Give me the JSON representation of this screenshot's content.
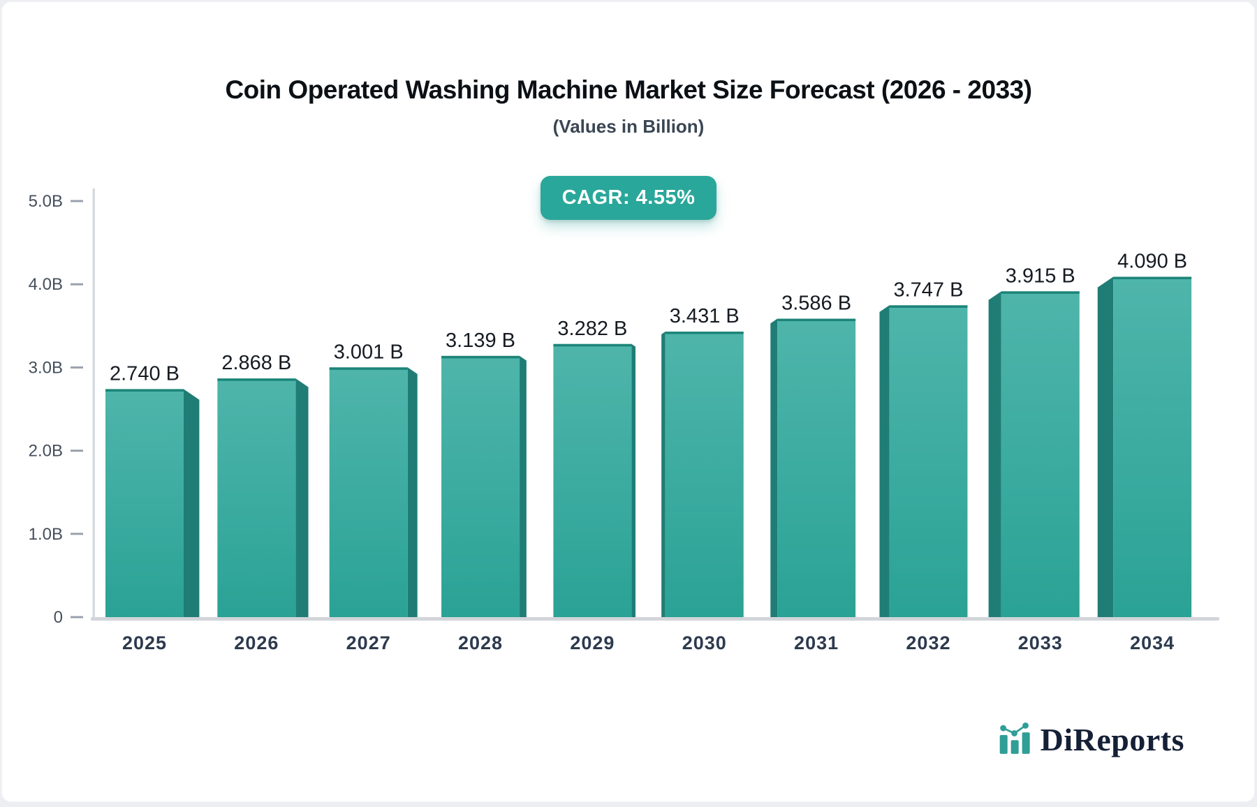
{
  "header": {
    "title": "Coin Operated Washing Machine Market Size Forecast (2026 - 2033)",
    "subtitle": "(Values in Billion)",
    "cagr_badge": "CAGR: 4.55%"
  },
  "chart_data": {
    "type": "bar",
    "title": "Coin Operated Washing Machine Market Size Forecast (2026 - 2033)",
    "subtitle": "(Values in Billion)",
    "unit": "Billion",
    "cagr": "4.55%",
    "categories": [
      "2025",
      "2026",
      "2027",
      "2028",
      "2029",
      "2030",
      "2031",
      "2032",
      "2033",
      "2034"
    ],
    "values": [
      2.74,
      2.868,
      3.001,
      3.139,
      3.282,
      3.431,
      3.586,
      3.747,
      3.915,
      4.09
    ],
    "value_labels": [
      "2.740 B",
      "2.868 B",
      "3.001 B",
      "3.139 B",
      "3.282 B",
      "3.431 B",
      "3.586 B",
      "3.747 B",
      "3.915 B",
      "4.090 B"
    ],
    "y_ticks": [
      {
        "v": 0,
        "label": "0"
      },
      {
        "v": 1,
        "label": "1.0B"
      },
      {
        "v": 2,
        "label": "2.0B"
      },
      {
        "v": 3,
        "label": "3.0B"
      },
      {
        "v": 4,
        "label": "4.0B"
      },
      {
        "v": 5,
        "label": "5.0B"
      }
    ],
    "ylim": [
      0,
      5
    ],
    "grid": false,
    "legend": false,
    "style": "3d-bars-center-perspective",
    "colors": {
      "bar_face_top": "#4fb5ab",
      "bar_face_bottom": "#2aa295",
      "bar_top_edge": "#1d8478",
      "bar_side": "#1f7d75",
      "axis_line": "#d7dade",
      "baseline": "#d2d5da",
      "tick_dash": "#9ba1ac",
      "y_label": "#454f5c",
      "x_label": "#2d3a4e",
      "value_label": "#161b22",
      "badge_bg": "#29a79a",
      "badge_text": "#ffffff"
    }
  },
  "footer": {
    "brand": "DiReports",
    "brand_color": "#152036",
    "icon_color": "#2f9e96"
  }
}
